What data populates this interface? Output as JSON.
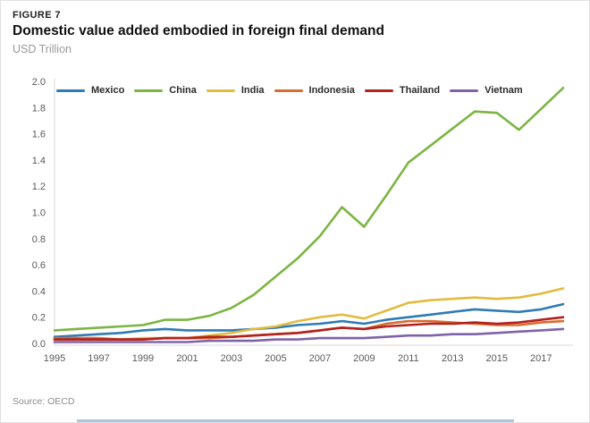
{
  "figure_label": "FIGURE 7",
  "title": "Domestic value added embodied in foreign final demand",
  "subtitle": "USD Trillion",
  "source": "Source: OECD",
  "colors": {
    "axis_line": "#d8d8d8",
    "tick_label": "#595959",
    "title_text": "#101010",
    "subtitle_text": "#9a9a9a",
    "bottom_strip": "#aec3dc"
  },
  "chart_data": {
    "type": "line",
    "title": "Domestic value added embodied in foreign final demand",
    "xlabel": "",
    "ylabel": "USD Trillion",
    "ylim": [
      0,
      2.0
    ],
    "grid": false,
    "legend_position": "top-left-inside",
    "x": [
      1995,
      1996,
      1997,
      1998,
      1999,
      2000,
      2001,
      2002,
      2003,
      2004,
      2005,
      2006,
      2007,
      2008,
      2009,
      2010,
      2011,
      2012,
      2013,
      2014,
      2015,
      2016,
      2017,
      2018
    ],
    "xtick_labels": [
      "1995",
      "1997",
      "1999",
      "2001",
      "2003",
      "2005",
      "2007",
      "2009",
      "2011",
      "2013",
      "2015",
      "2017"
    ],
    "xtick_years": [
      1995,
      1997,
      1999,
      2001,
      2003,
      2005,
      2007,
      2009,
      2011,
      2013,
      2015,
      2017
    ],
    "ytick_labels": [
      "0.0",
      "0.2",
      "0.4",
      "0.6",
      "0.8",
      "1.0",
      "1.2",
      "1.4",
      "1.6",
      "1.8",
      "2.0"
    ],
    "ytick_values": [
      0,
      0.2,
      0.4,
      0.6,
      0.8,
      1.0,
      1.2,
      1.4,
      1.6,
      1.8,
      2.0
    ],
    "series": [
      {
        "name": "Mexico",
        "color": "#2f7bb5",
        "values": [
          0.05,
          0.06,
          0.07,
          0.08,
          0.1,
          0.11,
          0.1,
          0.1,
          0.1,
          0.11,
          0.12,
          0.14,
          0.15,
          0.17,
          0.15,
          0.18,
          0.2,
          0.22,
          0.24,
          0.26,
          0.25,
          0.24,
          0.26,
          0.3
        ]
      },
      {
        "name": "China",
        "color": "#7cb543",
        "values": [
          0.1,
          0.11,
          0.12,
          0.13,
          0.14,
          0.18,
          0.18,
          0.21,
          0.27,
          0.37,
          0.51,
          0.65,
          0.82,
          1.04,
          0.89,
          1.13,
          1.38,
          1.51,
          1.64,
          1.77,
          1.76,
          1.63,
          1.79,
          1.95
        ]
      },
      {
        "name": "India",
        "color": "#e3bc3f",
        "values": [
          0.03,
          0.03,
          0.03,
          0.03,
          0.04,
          0.04,
          0.04,
          0.06,
          0.08,
          0.11,
          0.13,
          0.17,
          0.2,
          0.22,
          0.19,
          0.25,
          0.31,
          0.33,
          0.34,
          0.35,
          0.34,
          0.35,
          0.38,
          0.42
        ]
      },
      {
        "name": "Indonesia",
        "color": "#d96c30",
        "values": [
          0.04,
          0.04,
          0.04,
          0.03,
          0.03,
          0.04,
          0.04,
          0.04,
          0.05,
          0.06,
          0.07,
          0.08,
          0.1,
          0.12,
          0.11,
          0.15,
          0.17,
          0.17,
          0.16,
          0.15,
          0.14,
          0.14,
          0.16,
          0.17
        ]
      },
      {
        "name": "Thailand",
        "color": "#b2221e",
        "values": [
          0.03,
          0.03,
          0.03,
          0.03,
          0.03,
          0.04,
          0.04,
          0.05,
          0.05,
          0.06,
          0.07,
          0.08,
          0.1,
          0.12,
          0.11,
          0.13,
          0.14,
          0.15,
          0.15,
          0.16,
          0.15,
          0.16,
          0.18,
          0.2
        ]
      },
      {
        "name": "Vietnam",
        "color": "#7f63a9",
        "values": [
          0.01,
          0.01,
          0.01,
          0.01,
          0.01,
          0.01,
          0.01,
          0.02,
          0.02,
          0.02,
          0.03,
          0.03,
          0.04,
          0.04,
          0.04,
          0.05,
          0.06,
          0.06,
          0.07,
          0.07,
          0.08,
          0.09,
          0.1,
          0.11
        ]
      }
    ]
  }
}
